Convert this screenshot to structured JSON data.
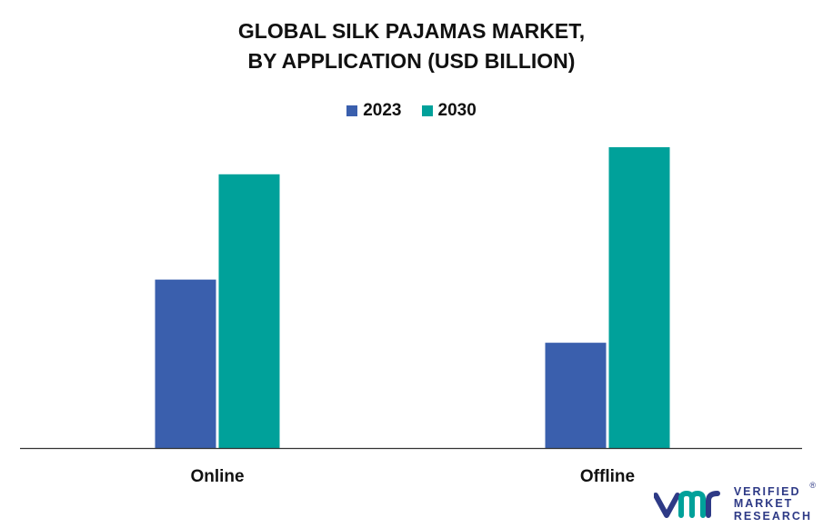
{
  "title_lines": [
    "GLOBAL SILK PAJAMAS MARKET,",
    "BY APPLICATION (USD BILLION)"
  ],
  "legend": [
    {
      "label": "2023",
      "color": "#3a5fad"
    },
    {
      "label": "2030",
      "color": "#00a19a"
    }
  ],
  "chart_data": {
    "type": "bar",
    "categories": [
      "Online",
      "Offline"
    ],
    "series": [
      {
        "name": "2023",
        "values": [
          5.6,
          3.5
        ],
        "color": "#3a5fad"
      },
      {
        "name": "2030",
        "values": [
          9.1,
          10.0
        ],
        "color": "#00a19a"
      }
    ],
    "title": "GLOBAL SILK PAJAMAS MARKET, BY APPLICATION (USD BILLION)",
    "xlabel": "",
    "ylabel": "",
    "ylim": [
      0,
      10
    ],
    "grid": false,
    "legend_position": "top-center"
  },
  "logo": {
    "lines": [
      "VERIFIED",
      "MARKET",
      "RESEARCH"
    ],
    "registered": "®",
    "color": "#2e3a86"
  }
}
